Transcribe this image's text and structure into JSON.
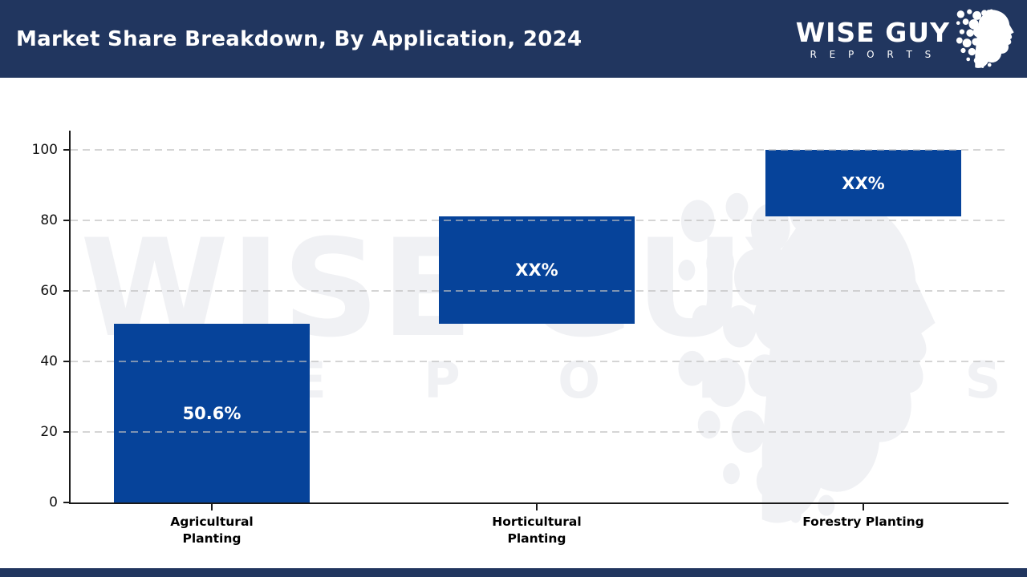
{
  "header": {
    "title": "Market Share Breakdown, By Application, 2024",
    "brand": {
      "line1": "WISE GUY",
      "line2": "R E P O R T S"
    }
  },
  "watermark": {
    "line1": "WISE GUY",
    "line2": "R E P O R T S"
  },
  "chart_data": {
    "type": "bar",
    "subtype": "stacked-waterfall",
    "title": "Market Share Breakdown, By Application, 2024",
    "categories": [
      "Agricultural\nPlanting",
      "Horticultural\nPlanting",
      "Forestry Planting"
    ],
    "segments": [
      {
        "category": "Agricultural Planting",
        "start": 0,
        "end": 50.6,
        "label": "50.6%"
      },
      {
        "category": "Horticultural Planting",
        "start": 50.6,
        "end": 81.1,
        "label": "XX%"
      },
      {
        "category": "Forestry Planting",
        "start": 81.1,
        "end": 100,
        "label": "XX%"
      }
    ],
    "ylim": [
      0,
      100
    ],
    "yticks": [
      0,
      20,
      40,
      60,
      80,
      100
    ],
    "xlabel": "",
    "ylabel": "",
    "grid": "horizontal-dashed",
    "legend": "none"
  },
  "colors": {
    "header_bg": "#21365f",
    "bar": "#06439a",
    "bar_label": "#ffffff",
    "grid": "#d4d4d4",
    "axis": "#1a1a1a",
    "tick_label": "#111111",
    "watermark": "#f0f1f4",
    "footer_bg": "#21365f",
    "background": "#ffffff"
  }
}
